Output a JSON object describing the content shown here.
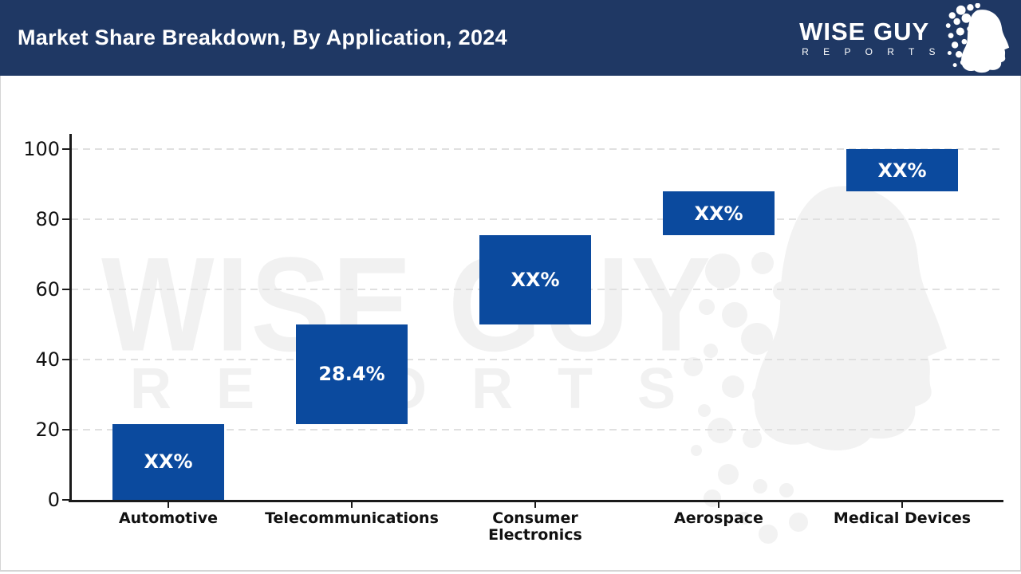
{
  "header": {
    "title": "Market Share Breakdown, By Application, 2024",
    "logo": {
      "line1": "WISE GUY",
      "line2": "R E P O R T S"
    }
  },
  "watermark": {
    "line1": "WISE GUY",
    "line2": "REPORTS"
  },
  "colors": {
    "header_bg": "#1f3864",
    "bar": "#0b4a9e",
    "axis": "#1a1a1a",
    "grid": "#e0e0e0",
    "watermark": "#f1f1f1",
    "tick_label": "#111111",
    "bar_label": "#ffffff",
    "frame_border": "#d5d5d5"
  },
  "chart_data": {
    "type": "bar",
    "variant": "floating-waterfall",
    "title": "Market Share Breakdown, By Application, 2024",
    "categories": [
      "Automotive",
      "Telecommunications",
      "Consumer Electronics",
      "Aerospace",
      "Medical Devices"
    ],
    "segments": [
      {
        "category": "Automotive",
        "category_lines": "Automotive",
        "start": 0,
        "end": 21.6,
        "label": "XX%"
      },
      {
        "category": "Telecommunications",
        "category_lines": "Telecommunications",
        "start": 21.6,
        "end": 50.0,
        "label": "28.4%"
      },
      {
        "category": "Consumer Electronics",
        "category_lines": "Consumer\nElectronics",
        "start": 50.0,
        "end": 75.4,
        "label": "XX%"
      },
      {
        "category": "Aerospace",
        "category_lines": "Aerospace",
        "start": 75.4,
        "end": 87.9,
        "label": "XX%"
      },
      {
        "category": "Medical Devices",
        "category_lines": "Medical Devices",
        "start": 87.9,
        "end": 100,
        "label": "XX%"
      }
    ],
    "ylim": [
      0,
      100
    ],
    "yticks": [
      0,
      20,
      40,
      60,
      80,
      100
    ],
    "grid": "dashed-horizontal",
    "legend": "none",
    "xlabel": "",
    "ylabel": ""
  }
}
